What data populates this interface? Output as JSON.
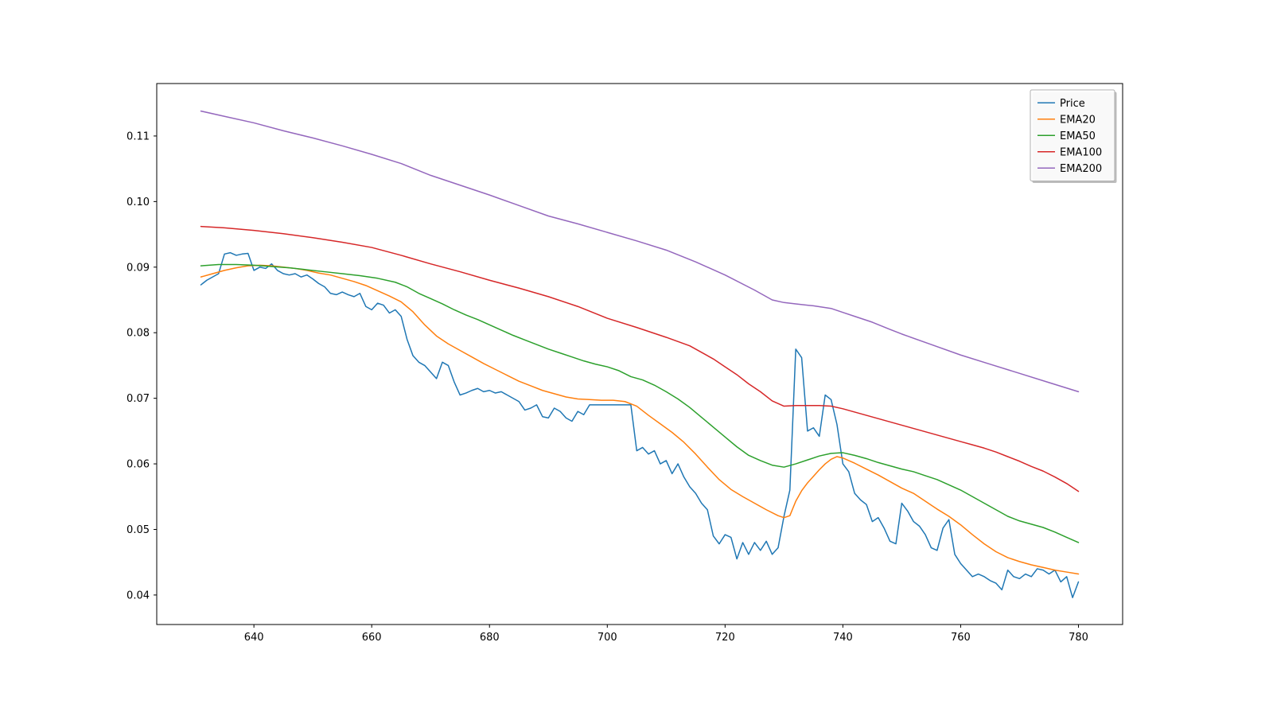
{
  "chart_data": {
    "type": "line",
    "title": "",
    "xlabel": "",
    "ylabel": "",
    "xlim": [
      623.5,
      787.5
    ],
    "ylim": [
      0.0355,
      0.118
    ],
    "xticks": [
      640,
      660,
      680,
      700,
      720,
      740,
      760,
      780
    ],
    "yticks": [
      0.04,
      0.05,
      0.06,
      0.07,
      0.08,
      0.09,
      0.1,
      0.11
    ],
    "grid": false,
    "axes_color": "#000000",
    "legend": {
      "position": "upper right",
      "entries": [
        "Price",
        "EMA20",
        "EMA50",
        "EMA100",
        "EMA200"
      ]
    },
    "series": [
      {
        "name": "Price",
        "color": "#1f77b4",
        "x": [
          631,
          632,
          633,
          634,
          635,
          636,
          637,
          638,
          639,
          640,
          641,
          642,
          643,
          644,
          645,
          646,
          647,
          648,
          649,
          650,
          651,
          652,
          653,
          654,
          655,
          656,
          657,
          658,
          659,
          660,
          661,
          662,
          663,
          664,
          665,
          666,
          667,
          668,
          669,
          670,
          671,
          672,
          673,
          674,
          675,
          676,
          677,
          678,
          679,
          680,
          681,
          682,
          683,
          684,
          685,
          686,
          687,
          688,
          689,
          690,
          691,
          692,
          693,
          694,
          695,
          696,
          697,
          698,
          699,
          700,
          701,
          702,
          703,
          704,
          705,
          706,
          707,
          708,
          709,
          710,
          711,
          712,
          713,
          714,
          715,
          716,
          717,
          718,
          719,
          720,
          721,
          722,
          723,
          724,
          725,
          726,
          727,
          728,
          729,
          730,
          731,
          732,
          733,
          734,
          735,
          736,
          737,
          738,
          739,
          740,
          741,
          742,
          743,
          744,
          745,
          746,
          747,
          748,
          749,
          750,
          751,
          752,
          753,
          754,
          755,
          756,
          757,
          758,
          759,
          760,
          761,
          762,
          763,
          764,
          765,
          766,
          767,
          768,
          769,
          770,
          771,
          772,
          773,
          774,
          775,
          776,
          777,
          778,
          779,
          780
        ],
        "y": [
          0.0873,
          0.088,
          0.0885,
          0.089,
          0.092,
          0.0922,
          0.0918,
          0.092,
          0.0921,
          0.0895,
          0.09,
          0.0898,
          0.0905,
          0.0895,
          0.089,
          0.0888,
          0.089,
          0.0885,
          0.0888,
          0.0882,
          0.0875,
          0.087,
          0.086,
          0.0858,
          0.0862,
          0.0858,
          0.0855,
          0.086,
          0.084,
          0.0835,
          0.0845,
          0.0842,
          0.083,
          0.0835,
          0.0825,
          0.079,
          0.0765,
          0.0755,
          0.075,
          0.074,
          0.073,
          0.0755,
          0.075,
          0.0725,
          0.0705,
          0.0708,
          0.0712,
          0.0715,
          0.071,
          0.0712,
          0.0708,
          0.071,
          0.0705,
          0.07,
          0.0695,
          0.0682,
          0.0685,
          0.069,
          0.0672,
          0.067,
          0.0685,
          0.068,
          0.067,
          0.0665,
          0.068,
          0.0675,
          0.069,
          0.069,
          0.069,
          0.069,
          0.069,
          0.069,
          0.069,
          0.069,
          0.062,
          0.0625,
          0.0615,
          0.062,
          0.06,
          0.0605,
          0.0585,
          0.06,
          0.058,
          0.0565,
          0.0555,
          0.054,
          0.053,
          0.049,
          0.0478,
          0.0492,
          0.0488,
          0.0455,
          0.048,
          0.0462,
          0.048,
          0.0468,
          0.0482,
          0.0462,
          0.0472,
          0.052,
          0.056,
          0.0775,
          0.0762,
          0.065,
          0.0655,
          0.0642,
          0.0705,
          0.0698,
          0.066,
          0.06,
          0.0588,
          0.0555,
          0.0545,
          0.0538,
          0.0512,
          0.0518,
          0.0502,
          0.0482,
          0.0478,
          0.054,
          0.0528,
          0.0512,
          0.0505,
          0.0492,
          0.0472,
          0.0468,
          0.0502,
          0.0515,
          0.0462,
          0.0448,
          0.0438,
          0.0428,
          0.0432,
          0.0428,
          0.0422,
          0.0418,
          0.0408,
          0.0438,
          0.0428,
          0.0425,
          0.0432,
          0.0428,
          0.044,
          0.0438,
          0.0432,
          0.0438,
          0.042,
          0.0428,
          0.0396,
          0.042
        ]
      },
      {
        "name": "EMA20",
        "color": "#ff7f0e",
        "x": [
          631,
          633,
          635,
          637,
          639,
          641,
          643,
          645,
          647,
          649,
          651,
          653,
          655,
          657,
          659,
          661,
          663,
          665,
          667,
          669,
          671,
          673,
          675,
          677,
          679,
          681,
          683,
          685,
          687,
          689,
          691,
          693,
          695,
          697,
          699,
          701,
          703,
          705,
          707,
          709,
          711,
          713,
          715,
          717,
          719,
          721,
          723,
          725,
          727,
          729,
          730,
          731,
          732,
          733,
          734,
          735,
          736,
          737,
          738,
          739,
          740,
          741,
          742,
          744,
          746,
          748,
          750,
          752,
          754,
          756,
          758,
          760,
          762,
          764,
          766,
          768,
          770,
          772,
          774,
          776,
          778,
          780
        ],
        "y": [
          0.0885,
          0.089,
          0.0895,
          0.0899,
          0.0902,
          0.0903,
          0.0902,
          0.09,
          0.0898,
          0.0895,
          0.0891,
          0.0888,
          0.0883,
          0.0878,
          0.0872,
          0.0864,
          0.0856,
          0.0847,
          0.0832,
          0.0812,
          0.0795,
          0.0783,
          0.0773,
          0.0763,
          0.0753,
          0.0744,
          0.0735,
          0.0726,
          0.0719,
          0.0712,
          0.0707,
          0.0702,
          0.0699,
          0.0698,
          0.0697,
          0.0697,
          0.0695,
          0.0688,
          0.0674,
          0.0661,
          0.0648,
          0.0633,
          0.0615,
          0.0595,
          0.0576,
          0.0561,
          0.055,
          0.054,
          0.053,
          0.0521,
          0.0518,
          0.0521,
          0.0543,
          0.0559,
          0.0571,
          0.0581,
          0.0591,
          0.06,
          0.0607,
          0.0611,
          0.0609,
          0.0605,
          0.0601,
          0.0592,
          0.0583,
          0.0573,
          0.0563,
          0.0555,
          0.0543,
          0.0531,
          0.052,
          0.0507,
          0.0492,
          0.0478,
          0.0466,
          0.0457,
          0.0451,
          0.0446,
          0.0442,
          0.0438,
          0.0435,
          0.0432
        ]
      },
      {
        "name": "EMA50",
        "color": "#2ca02c",
        "x": [
          631,
          634,
          637,
          640,
          643,
          646,
          649,
          652,
          655,
          658,
          661,
          664,
          666,
          668,
          670,
          672,
          674,
          676,
          678,
          680,
          682,
          684,
          686,
          688,
          690,
          692,
          694,
          696,
          698,
          700,
          702,
          704,
          706,
          708,
          710,
          712,
          714,
          716,
          718,
          720,
          722,
          724,
          726,
          728,
          730,
          732,
          734,
          736,
          738,
          740,
          742,
          744,
          746,
          748,
          750,
          752,
          754,
          756,
          758,
          760,
          762,
          764,
          766,
          768,
          770,
          772,
          774,
          776,
          778,
          780
        ],
        "y": [
          0.0902,
          0.0904,
          0.0904,
          0.0903,
          0.0901,
          0.0899,
          0.0896,
          0.0893,
          0.089,
          0.0887,
          0.0883,
          0.0877,
          0.087,
          0.086,
          0.0852,
          0.0844,
          0.0835,
          0.0827,
          0.082,
          0.0812,
          0.0804,
          0.0796,
          0.0789,
          0.0782,
          0.0775,
          0.0769,
          0.0763,
          0.0757,
          0.0752,
          0.0748,
          0.0742,
          0.0733,
          0.0728,
          0.072,
          0.071,
          0.0699,
          0.0686,
          0.0671,
          0.0656,
          0.0641,
          0.0626,
          0.0613,
          0.0605,
          0.0598,
          0.0595,
          0.06,
          0.0606,
          0.0612,
          0.0616,
          0.0617,
          0.0613,
          0.0608,
          0.0602,
          0.0597,
          0.0592,
          0.0588,
          0.0582,
          0.0576,
          0.0568,
          0.056,
          0.055,
          0.054,
          0.053,
          0.052,
          0.0513,
          0.0508,
          0.0503,
          0.0496,
          0.0488,
          0.048
        ]
      },
      {
        "name": "EMA100",
        "color": "#d62728",
        "x": [
          631,
          635,
          640,
          645,
          650,
          655,
          660,
          665,
          670,
          675,
          680,
          685,
          690,
          695,
          700,
          705,
          710,
          714,
          718,
          720,
          722,
          724,
          726,
          728,
          730,
          732,
          734,
          736,
          738,
          740,
          742,
          744,
          746,
          748,
          750,
          752,
          754,
          756,
          758,
          760,
          762,
          764,
          766,
          768,
          770,
          772,
          774,
          776,
          778,
          780
        ],
        "y": [
          0.0962,
          0.096,
          0.0956,
          0.0951,
          0.0945,
          0.0938,
          0.093,
          0.0918,
          0.0905,
          0.0893,
          0.088,
          0.0868,
          0.0855,
          0.084,
          0.0822,
          0.0808,
          0.0793,
          0.078,
          0.076,
          0.0748,
          0.0736,
          0.0722,
          0.071,
          0.0696,
          0.0688,
          0.0689,
          0.0689,
          0.0689,
          0.0688,
          0.0684,
          0.0679,
          0.0674,
          0.0669,
          0.0664,
          0.0659,
          0.0654,
          0.0649,
          0.0644,
          0.0639,
          0.0634,
          0.0629,
          0.0624,
          0.0618,
          0.0611,
          0.0604,
          0.0596,
          0.0589,
          0.058,
          0.057,
          0.0558
        ]
      },
      {
        "name": "EMA200",
        "color": "#9467bd",
        "x": [
          631,
          635,
          640,
          645,
          650,
          655,
          660,
          665,
          670,
          675,
          680,
          685,
          690,
          695,
          700,
          705,
          710,
          715,
          720,
          725,
          728,
          730,
          732,
          735,
          738,
          740,
          742,
          745,
          748,
          750,
          755,
          760,
          765,
          770,
          775,
          780
        ],
        "y": [
          0.1138,
          0.113,
          0.112,
          0.1108,
          0.1097,
          0.1085,
          0.1072,
          0.1058,
          0.104,
          0.1025,
          0.101,
          0.0994,
          0.0978,
          0.0966,
          0.0953,
          0.094,
          0.0926,
          0.0908,
          0.0888,
          0.0865,
          0.085,
          0.0846,
          0.0844,
          0.0841,
          0.0837,
          0.0831,
          0.0825,
          0.0816,
          0.0805,
          0.0798,
          0.0782,
          0.0766,
          0.0752,
          0.0738,
          0.0724,
          0.071
        ]
      }
    ]
  }
}
